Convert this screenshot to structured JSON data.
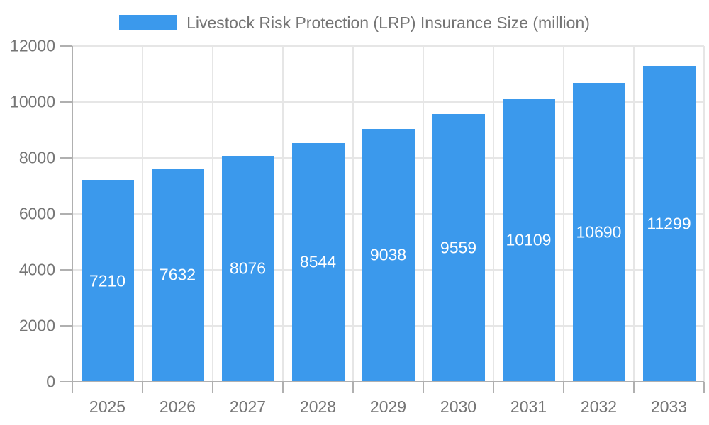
{
  "chart_data": {
    "type": "bar",
    "title": "",
    "xlabel": "",
    "ylabel": "",
    "categories": [
      "2025",
      "2026",
      "2027",
      "2028",
      "2029",
      "2030",
      "2031",
      "2032",
      "2033"
    ],
    "series": [
      {
        "name": "Livestock Risk Protection (LRP) Insurance Size (million)",
        "values": [
          7210,
          7632,
          8076,
          8544,
          9038,
          9559,
          10109,
          10690,
          11299
        ]
      }
    ],
    "value_labels": [
      7210,
      7632,
      8076,
      8544,
      9038,
      9559,
      10109,
      10690,
      11299
    ],
    "value_label_position": "inside-center",
    "ylim": [
      0,
      12000
    ],
    "y_ticks": [
      0,
      2000,
      4000,
      6000,
      8000,
      10000,
      12000
    ],
    "grid": "horizontal-and-vertical",
    "legend_position": "top-center"
  },
  "colors": {
    "bar": "#3B99EC",
    "grid": "#E6E6E6",
    "axis": "#B0B0B0",
    "text": "#757575",
    "value_label": "#FFFFFF",
    "background": "#FFFFFF"
  }
}
